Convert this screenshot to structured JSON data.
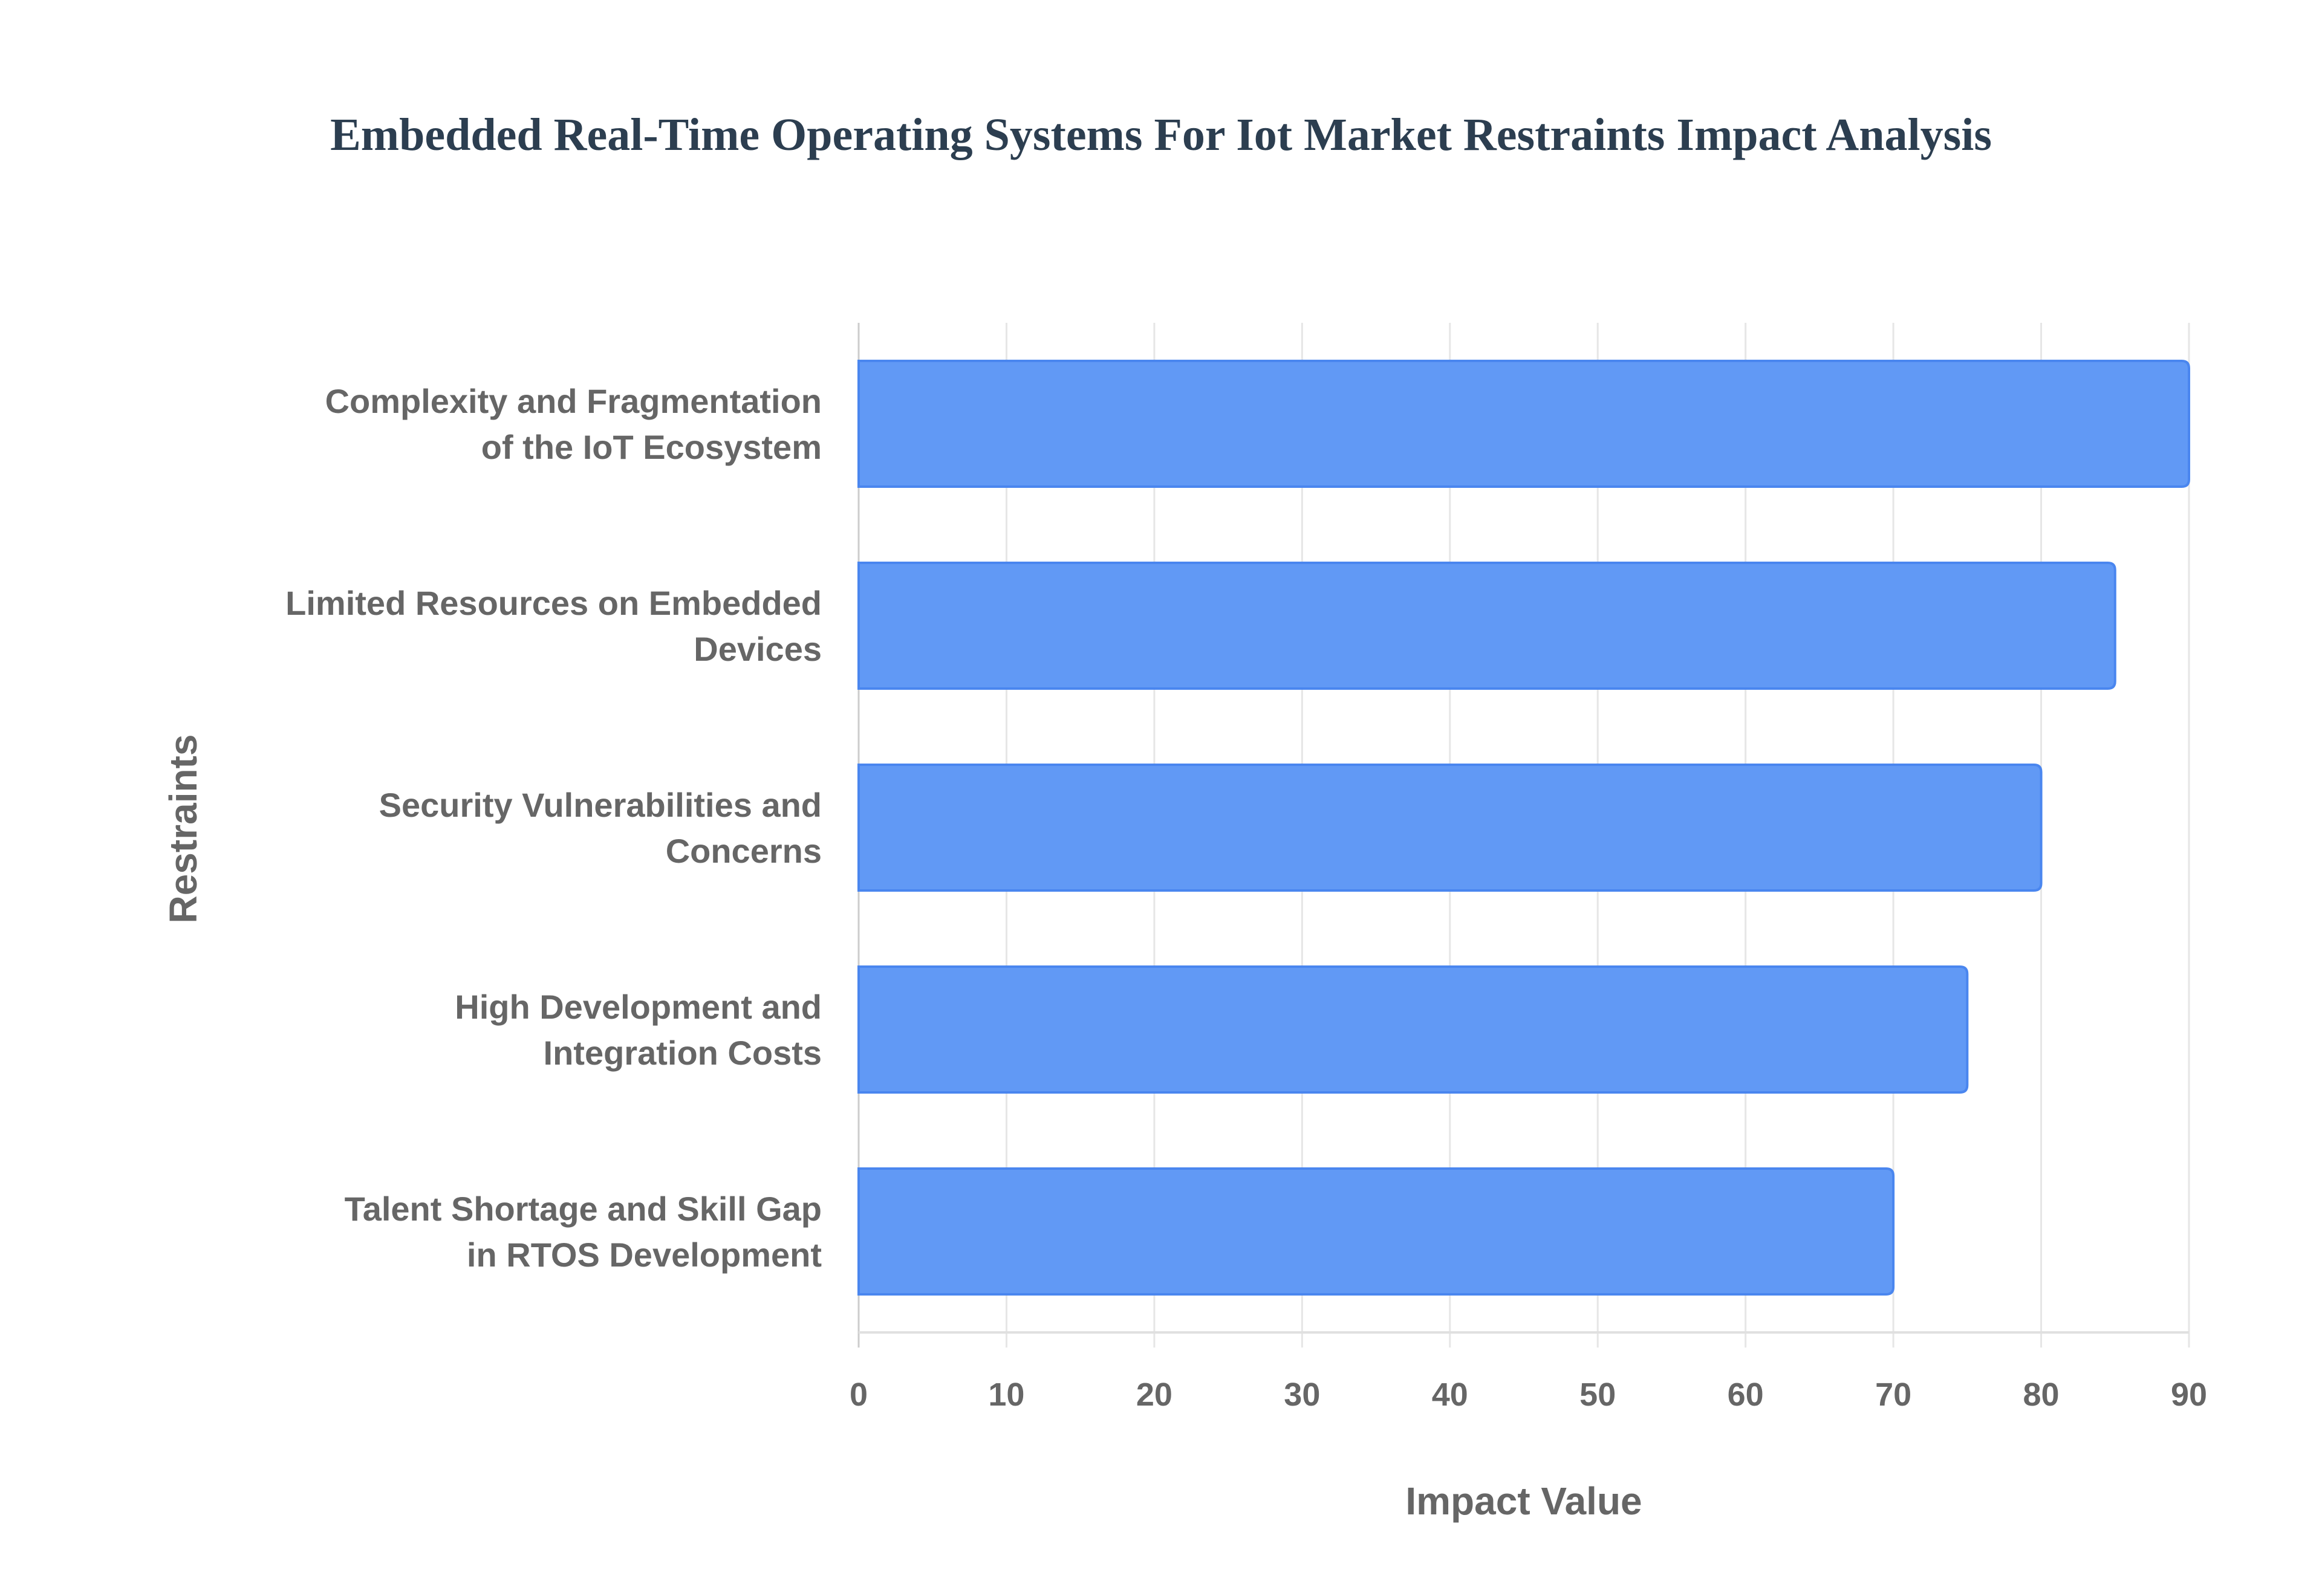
{
  "chart_data": {
    "type": "bar",
    "orientation": "horizontal",
    "title": "Embedded Real-Time Operating Systems For Iot Market Restraints Impact Analysis",
    "xlabel": "Impact Value",
    "ylabel": "Restraints",
    "categories": [
      [
        "Complexity and Fragmentation",
        "of the IoT Ecosystem"
      ],
      [
        "Limited Resources on Embedded",
        "Devices"
      ],
      [
        "Security Vulnerabilities and",
        "Concerns"
      ],
      [
        "High Development and",
        "Integration Costs"
      ],
      [
        "Talent Shortage and Skill Gap",
        "in RTOS Development"
      ]
    ],
    "values": [
      90,
      85,
      80,
      75,
      70
    ],
    "xlim": [
      0,
      90
    ],
    "xticks": [
      "0",
      "10",
      "20",
      "30",
      "40",
      "50",
      "60",
      "70",
      "80",
      "90"
    ],
    "grid": true,
    "bar_color": "#6199f5",
    "bar_border_color": "#4a86ef"
  }
}
